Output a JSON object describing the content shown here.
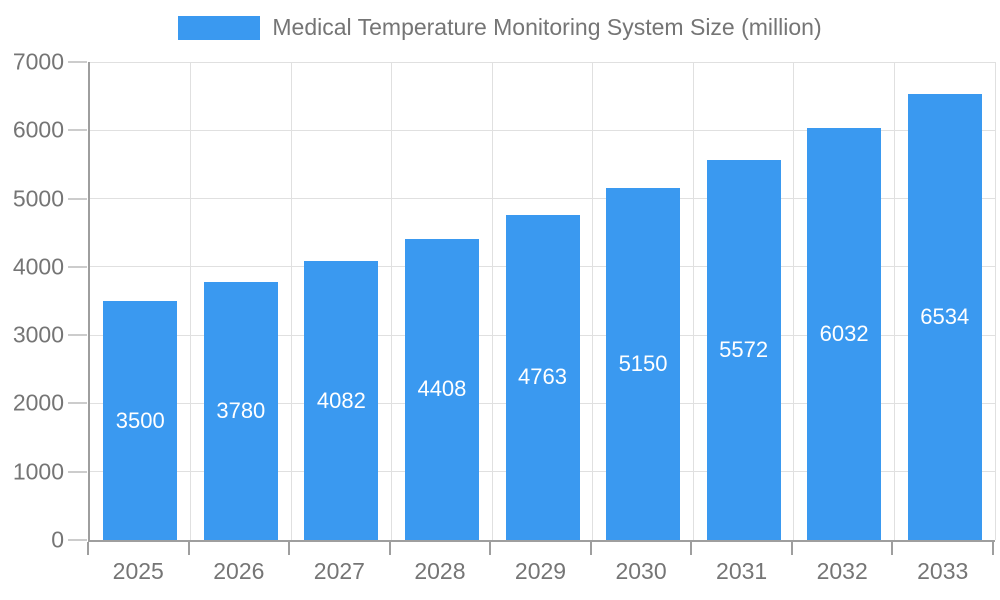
{
  "legend": {
    "label": "Medical Temperature Monitoring System Size (million)",
    "swatch_color": "#3a99f0"
  },
  "chart_data": {
    "type": "bar",
    "title": "Medical Temperature Monitoring System Size (million)",
    "categories": [
      "2025",
      "2026",
      "2027",
      "2028",
      "2029",
      "2030",
      "2031",
      "2032",
      "2033"
    ],
    "values": [
      3500,
      3780,
      4082,
      4408,
      4763,
      5150,
      5572,
      6032,
      6534
    ],
    "series": [
      {
        "name": "Medical Temperature Monitoring System Size (million)",
        "values": [
          3500,
          3780,
          4082,
          4408,
          4763,
          5150,
          5572,
          6032,
          6534
        ]
      }
    ],
    "xlabel": "",
    "ylabel": "",
    "ylim": [
      0,
      7000
    ],
    "yticks": [
      0,
      1000,
      2000,
      3000,
      4000,
      5000,
      6000,
      7000
    ],
    "grid": true,
    "legend_position": "top-center",
    "bar_color": "#3a99f0",
    "value_label_color": "#ffffff",
    "value_label_position": "inside-center"
  }
}
